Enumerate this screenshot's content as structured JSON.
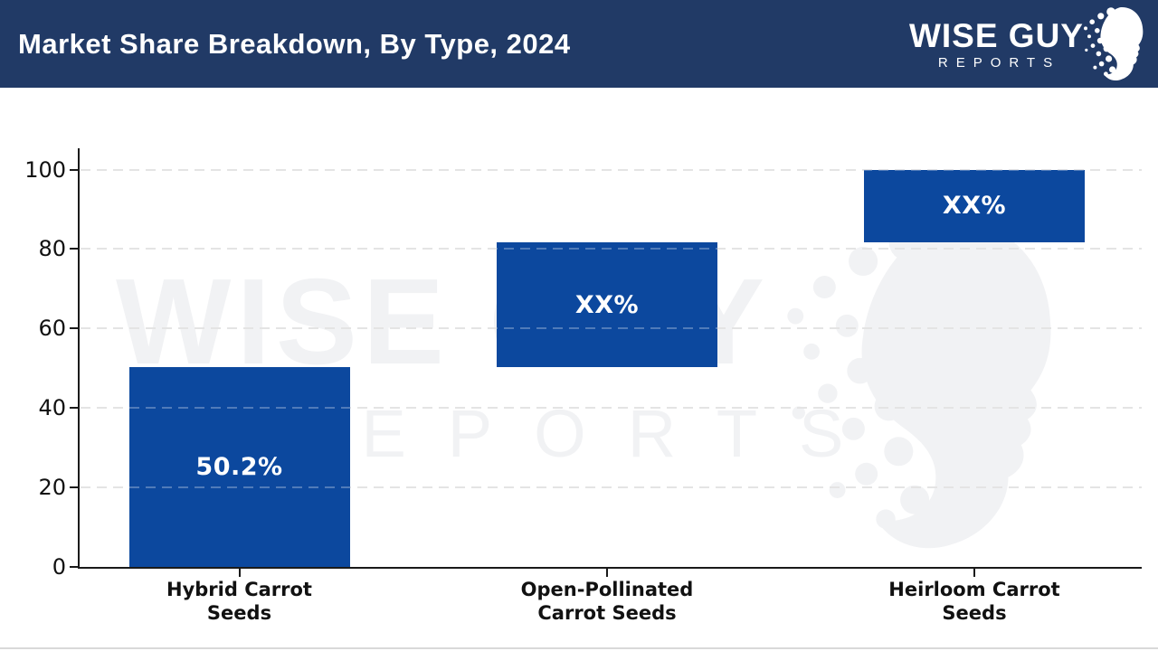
{
  "header": {
    "title": "Market Share Breakdown, By Type, 2024",
    "logo_line1": "WISE GUY",
    "logo_line2": "REPORTS"
  },
  "watermark": {
    "line1": "WISE GUY",
    "line2": "REPORTS"
  },
  "chart_data": {
    "type": "bar",
    "variant": "floating-segment-breakdown",
    "title": "Market Share Breakdown, By Type, 2024",
    "categories": [
      "Hybrid Carrot Seeds",
      "Open-Pollinated Carrot Seeds",
      "Heirloom Carrot Seeds"
    ],
    "category_label_lines": [
      [
        "Hybrid Carrot",
        "Seeds"
      ],
      [
        "Open-Pollinated",
        "Carrot Seeds"
      ],
      [
        "Heirloom Carrot",
        "Seeds"
      ]
    ],
    "segments": [
      {
        "category": "Hybrid Carrot Seeds",
        "start": 0,
        "end": 50.2,
        "label": "50.2%"
      },
      {
        "category": "Open-Pollinated Carrot Seeds",
        "start": 50.2,
        "end": 81.6,
        "label": "XX%"
      },
      {
        "category": "Heirloom Carrot Seeds",
        "start": 81.6,
        "end": 100,
        "label": "XX%"
      }
    ],
    "xlabel": "",
    "ylabel": "",
    "ylim": [
      0,
      105.3
    ],
    "yticks": [
      0,
      20,
      40,
      60,
      80,
      100
    ],
    "grid": "horizontal-dashed",
    "legend": "none",
    "colors": {
      "bar": "#0C489E",
      "bar_label": "#ffffff",
      "axis": "#1a1a1a",
      "grid": "#d9d9d9",
      "header_bg": "#213A66",
      "watermark": "#f1f2f4"
    }
  }
}
